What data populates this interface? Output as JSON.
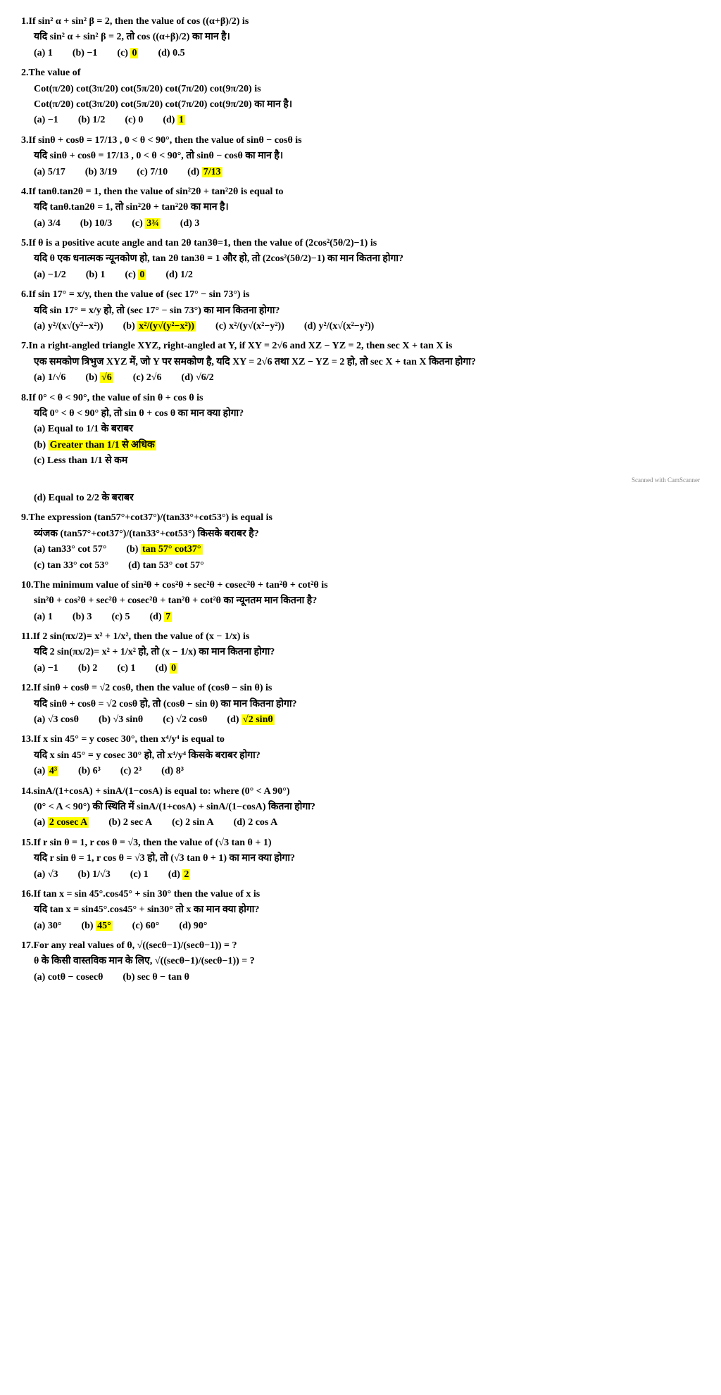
{
  "questions": [
    {
      "num": "1.",
      "en": "If sin² α + sin² β = 2, then the value of cos ((α+β)/2) is",
      "hi": "यदि sin² α + sin² β = 2, तो cos ((α+β)/2) का मान है।",
      "opts": [
        {
          "l": "(a)",
          "t": "1"
        },
        {
          "l": "(b)",
          "t": "−1"
        },
        {
          "l": "(c)",
          "t": "0",
          "hl": true
        },
        {
          "l": "(d)",
          "t": "0.5"
        }
      ]
    },
    {
      "num": "2.",
      "en": "The value of",
      "en2": "Cot(π/20) cot(3π/20) cot(5π/20) cot(7π/20) cot(9π/20) is",
      "hi": "Cot(π/20) cot(3π/20) cot(5π/20) cot(7π/20) cot(9π/20) का मान है।",
      "opts": [
        {
          "l": "(a)",
          "t": "−1"
        },
        {
          "l": "(b)",
          "t": "1/2"
        },
        {
          "l": "(c)",
          "t": "0"
        },
        {
          "l": "(d)",
          "t": "1",
          "hl": true
        }
      ]
    },
    {
      "num": "3.",
      "en": "If sinθ + cosθ = 17/13 , 0 < θ < 90°, then the value of sinθ − cosθ is",
      "hi": "यदि sinθ + cosθ = 17/13 , 0 < θ < 90°, तो sinθ − cosθ का मान है।",
      "opts": [
        {
          "l": "(a)",
          "t": "5/17"
        },
        {
          "l": "(b)",
          "t": "3/19"
        },
        {
          "l": "(c)",
          "t": "7/10"
        },
        {
          "l": "(d)",
          "t": "7/13",
          "hl": true
        }
      ]
    },
    {
      "num": "4.",
      "en": "If tanθ.tan2θ = 1, then the value of sin²2θ + tan²2θ is equal to",
      "hi": "यदि tanθ.tan2θ = 1, तो sin²2θ + tan²2θ का मान है।",
      "opts": [
        {
          "l": "(a)",
          "t": "3/4"
        },
        {
          "l": "(b)",
          "t": "10/3"
        },
        {
          "l": "(c)",
          "t": "3¾",
          "hl": true
        },
        {
          "l": "(d)",
          "t": "3"
        }
      ]
    },
    {
      "num": "5.",
      "en": "If θ is a positive acute angle and tan 2θ tan3θ=1, then the value of (2cos²(5θ/2)−1) is",
      "hi": "यदि θ एक धनात्मक न्यूनकोण हो, tan 2θ tan3θ = 1 और हो, तो (2cos²(5θ/2)−1) का मान कितना होगा?",
      "opts": [
        {
          "l": "(a)",
          "t": "−1/2"
        },
        {
          "l": "(b)",
          "t": "1"
        },
        {
          "l": "(c)",
          "t": "0",
          "hl": true
        },
        {
          "l": "(d)",
          "t": "1/2"
        }
      ]
    },
    {
      "num": "6.",
      "en": "If sin 17° = x/y, then the value of (sec 17° − sin 73°) is",
      "hi": "यदि sin 17° = x/y हो, तो (sec 17° − sin 73°) का मान कितना होगा?",
      "opts": [
        {
          "l": "(a)",
          "t": "y²/(x√(y²−x²))"
        },
        {
          "l": "(b)",
          "t": "x²/(y√(y²−x²))",
          "hl": true
        },
        {
          "l": "(c)",
          "t": "x²/(y√(x²−y²))"
        },
        {
          "l": "(d)",
          "t": "y²/(x√(x²−y²))"
        }
      ]
    },
    {
      "num": "7.",
      "en": "In a right-angled triangle XYZ, right-angled at Y, if XY = 2√6 and XZ − YZ = 2, then sec X + tan X is",
      "hi": "एक समकोण त्रिभुज XYZ में, जो Y पर समकोण है, यदि XY = 2√6 तथा XZ − YZ = 2 हो, तो sec X + tan X कितना होगा?",
      "opts": [
        {
          "l": "(a)",
          "t": "1/√6"
        },
        {
          "l": "(b)",
          "t": "√6",
          "hl": true
        },
        {
          "l": "(c)",
          "t": "2√6"
        },
        {
          "l": "(d)",
          "t": "√6/2"
        }
      ]
    },
    {
      "num": "8.",
      "en": "If 0° < θ < 90°, the value of sin θ + cos θ is",
      "hi": "यदि 0° < θ < 90° हो, तो sin θ + cos θ का मान क्या होगा?",
      "sub_opts": [
        {
          "t": "(a) Equal to 1/1 के बराबर"
        },
        {
          "t": "(b) Greater than 1/1 से अधिक",
          "hl": "Greater than 1/1 से अधिक",
          "pre": "(b) "
        },
        {
          "t": "(c) Less than 1/1 से कम"
        }
      ]
    }
  ],
  "scanner_text": "Scanned with CamScanner",
  "questions2": [
    {
      "num": "",
      "sub_opts": [
        {
          "t": "(d) Equal to 2/2 के बराबर"
        }
      ]
    },
    {
      "num": "9.",
      "en": "The expression (tan57°+cot37°)/(tan33°+cot53°) is equal is",
      "hi": "व्यंजक (tan57°+cot37°)/(tan33°+cot53°) किसके बराबर है?",
      "opts": [
        {
          "l": "(a)",
          "t": "tan33° cot 57°"
        },
        {
          "l": "(b)",
          "t": "tan 57° cot37°",
          "hl": true
        }
      ],
      "opts2": [
        {
          "l": "(c)",
          "t": "tan 33° cot 53°"
        },
        {
          "l": "(d)",
          "t": "tan 53° cot 57°"
        }
      ]
    },
    {
      "num": "10.",
      "en": "The minimum value of sin²θ + cos²θ + sec²θ + cosec²θ + tan²θ + cot²θ is",
      "hi": "sin²θ + cos²θ + sec²θ + cosec²θ + tan²θ + cot²θ का न्यूनतम मान कितना है?",
      "opts": [
        {
          "l": "(a)",
          "t": "1"
        },
        {
          "l": "(b)",
          "t": "3"
        },
        {
          "l": "(c)",
          "t": "5"
        },
        {
          "l": "(d)",
          "t": "7",
          "hl": true
        }
      ]
    },
    {
      "num": "11.",
      "en": "If 2 sin(πx/2)= x² + 1/x², then the value of (x − 1/x) is",
      "hi": "यदि 2 sin(πx/2)= x² + 1/x² हो, तो (x − 1/x) का मान कितना होगा?",
      "opts": [
        {
          "l": "(a)",
          "t": "−1"
        },
        {
          "l": "(b)",
          "t": "2"
        },
        {
          "l": "(c)",
          "t": "1"
        },
        {
          "l": "(d)",
          "t": "0",
          "hl": true
        }
      ]
    },
    {
      "num": "12.",
      "en": "If sinθ + cosθ = √2 cosθ, then the value of (cosθ − sin θ) is",
      "hi": "यदि sinθ + cosθ = √2 cosθ हो, तो (cosθ − sin θ) का मान कितना होगा?",
      "opts": [
        {
          "l": "(a)",
          "t": "√3 cosθ"
        },
        {
          "l": "(b)",
          "t": "√3 sinθ"
        },
        {
          "l": "(c)",
          "t": "√2 cosθ"
        },
        {
          "l": "(d)",
          "t": "√2 sinθ",
          "hl": true
        }
      ]
    },
    {
      "num": "13.",
      "en": "If x sin 45° = y cosec 30°, then x⁴/y⁴ is equal to",
      "hi": "यदि x sin 45° = y cosec 30° हो, तो x⁴/y⁴ किसके बराबर होगा?",
      "opts": [
        {
          "l": "(a)",
          "t": "4³",
          "hl": true
        },
        {
          "l": "(b)",
          "t": "6³"
        },
        {
          "l": "(c)",
          "t": "2³"
        },
        {
          "l": "(d)",
          "t": "8³"
        }
      ]
    },
    {
      "num": "14.",
      "en": "sinA/(1+cosA) + sinA/(1−cosA) is equal to: where (0° < A 90°)",
      "hi": "(0° < A < 90°) की स्थिति में sinA/(1+cosA) + sinA/(1−cosA) कितना होगा?",
      "opts": [
        {
          "l": "(a)",
          "t": "2 cosec A",
          "hl": true
        },
        {
          "l": "(b)",
          "t": "2 sec A"
        },
        {
          "l": "(c)",
          "t": "2 sin A"
        },
        {
          "l": "(d)",
          "t": "2 cos A"
        }
      ]
    },
    {
      "num": "15.",
      "en": "If r sin θ = 1, r cos θ = √3, then the value of (√3 tan θ + 1)",
      "hi": "यदि r sin θ = 1, r cos θ = √3 हो, तो (√3 tan θ + 1) का मान क्या होगा?",
      "opts": [
        {
          "l": "(a)",
          "t": "√3"
        },
        {
          "l": "(b)",
          "t": "1/√3"
        },
        {
          "l": "(c)",
          "t": "1"
        },
        {
          "l": "(d)",
          "t": "2",
          "hl": true
        }
      ]
    },
    {
      "num": "16.",
      "en": "If tan x = sin 45°.cos45° + sin 30° then the value of x is",
      "hi": "यदि tan x = sin45°.cos45° + sin30° तो x का मान क्या होगा?",
      "opts": [
        {
          "l": "(a)",
          "t": "30°"
        },
        {
          "l": "(b)",
          "t": "45°",
          "hl": true
        },
        {
          "l": "(c)",
          "t": "60°"
        },
        {
          "l": "(d)",
          "t": "90°"
        }
      ]
    },
    {
      "num": "17.",
      "en": "For any real values of θ, √((secθ−1)/(secθ−1)) = ?",
      "hi": "θ के किसी वास्तविक मान के लिए, √((secθ−1)/(secθ−1)) = ?",
      "opts": [
        {
          "l": "(a)",
          "t": "cotθ − cosecθ"
        },
        {
          "l": "(b)",
          "t": "sec θ − tan θ"
        }
      ]
    }
  ]
}
